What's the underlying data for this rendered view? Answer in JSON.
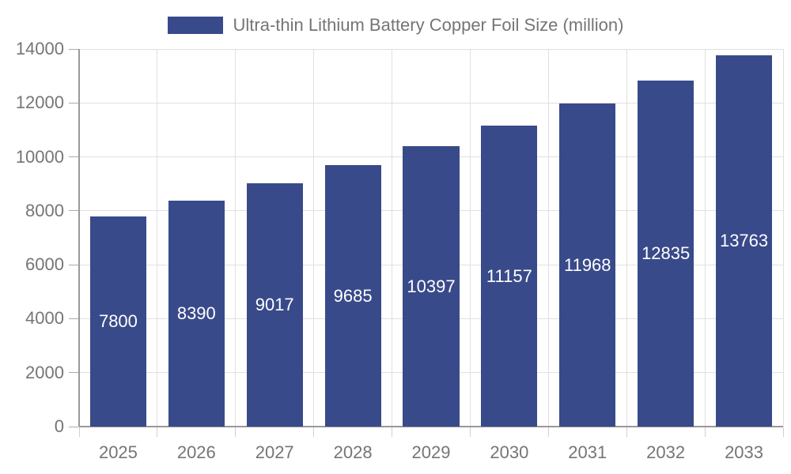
{
  "legend": {
    "label": "Ultra-thin Lithium Battery Copper Foil Size (million)",
    "swatch_color": "#394A8A"
  },
  "chart_data": {
    "type": "bar",
    "title": "",
    "xlabel": "",
    "ylabel": "",
    "categories": [
      "2025",
      "2026",
      "2027",
      "2028",
      "2029",
      "2030",
      "2031",
      "2032",
      "2033"
    ],
    "series": [
      {
        "name": "Ultra-thin Lithium Battery Copper Foil Size (million)",
        "values": [
          7800,
          8390,
          9017,
          9685,
          10397,
          11157,
          11968,
          12835,
          13763
        ]
      }
    ],
    "ylim": [
      0,
      14000
    ],
    "yticks": [
      0,
      2000,
      4000,
      6000,
      8000,
      10000,
      12000,
      14000
    ],
    "grid": true,
    "legend_position": "top",
    "bar_label_position": "inside-center",
    "colors": {
      "bar": "#394A8A",
      "bar_value_label": "#FFFFFF",
      "axis_text": "#757575",
      "gridline": "#E0E0E0",
      "axis_line": "#999999"
    }
  }
}
